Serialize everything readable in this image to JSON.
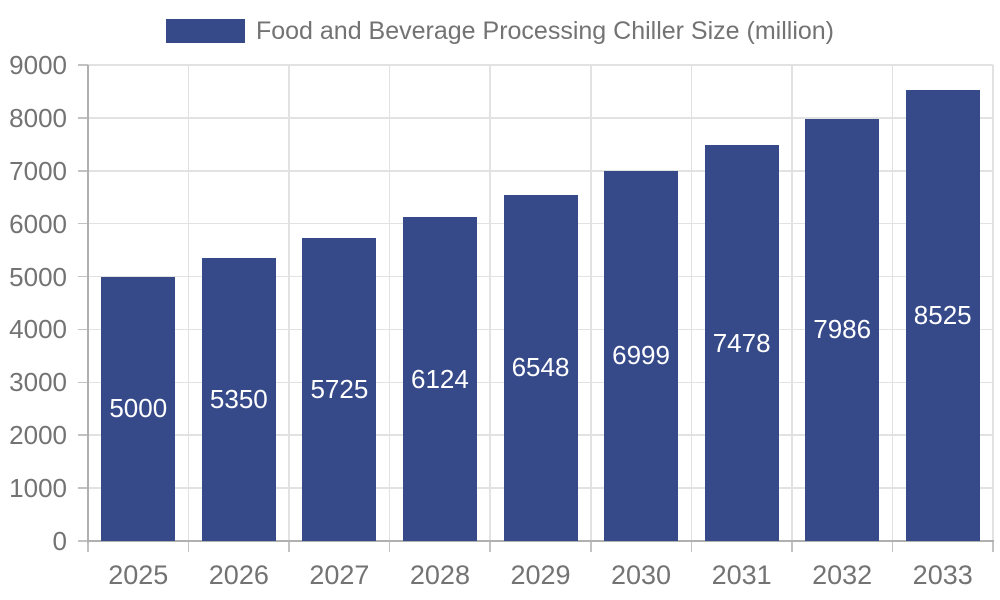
{
  "legend": {
    "label": "Food and Beverage Processing Chiller Size (million)"
  },
  "colors": {
    "bar": "#364989",
    "bar_label_text": "#ffffff",
    "axis_label_text": "#737373",
    "gridline": "#e2e2e2",
    "axis_line": "#b0b0b0",
    "tick_mark": "#c2c2c2",
    "background": "#ffffff"
  },
  "chart_data": {
    "type": "bar",
    "title": "Food and Beverage Processing Chiller Size (million)",
    "categories": [
      "2025",
      "2026",
      "2027",
      "2028",
      "2029",
      "2030",
      "2031",
      "2032",
      "2033"
    ],
    "values": [
      5000,
      5350,
      5725,
      6124,
      6548,
      6999,
      7478,
      7986,
      8525
    ],
    "xlabel": "",
    "ylabel": "",
    "ylim": [
      0,
      9000
    ],
    "ytick_step": 1000,
    "grid": true,
    "legend_position": "top-center",
    "value_labels": "inside-center"
  }
}
